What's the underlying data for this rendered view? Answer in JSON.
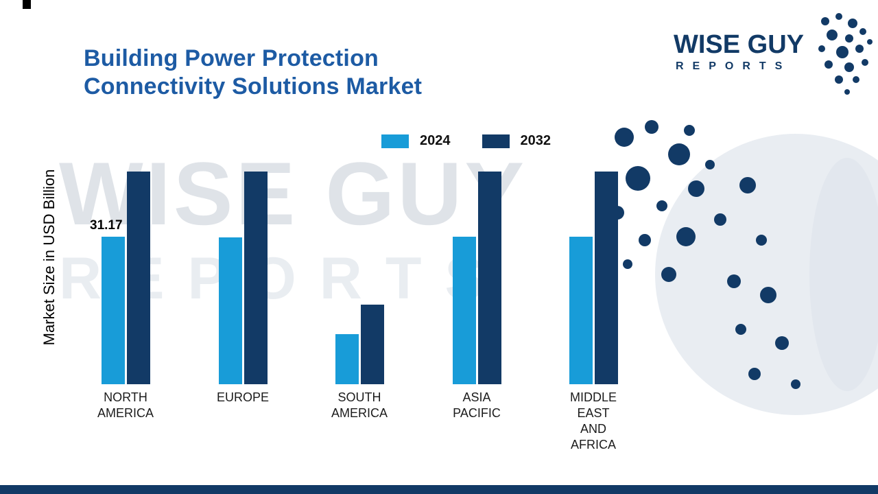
{
  "page": {
    "title_line1": "Building Power Protection",
    "title_line2": "Connectivity Solutions Market"
  },
  "logo": {
    "brand": "WISE GUY",
    "subbrand": "REPORTS"
  },
  "watermark": {
    "line1": "WISE GUY",
    "line2": "REPORTS"
  },
  "axis": {
    "ylabel": "Market Size in USD Billion"
  },
  "chart_data": {
    "type": "bar",
    "title": "Building Power Protection Connectivity Solutions Market",
    "ylabel": "Market Size in USD Billion",
    "xlabel": "",
    "categories": [
      "NORTH\nAMERICA",
      "EUROPE",
      "SOUTH\nAMERICA",
      "ASIA\nPACIFIC",
      "MIDDLE\nEAST\nAND\nAFRICA"
    ],
    "series": [
      {
        "name": "2024",
        "color": "#189cd8",
        "values": [
          31.17,
          31.0,
          10.6,
          31.2,
          31.2
        ]
      },
      {
        "name": "2032",
        "color": "#123a66",
        "values": [
          45.0,
          45.0,
          16.8,
          45.0,
          45.0
        ]
      }
    ],
    "bar_label": {
      "text": "31.17",
      "series": 0,
      "index": 0
    },
    "ylim": [
      0,
      48
    ],
    "grid": false,
    "legend_position": "top"
  },
  "colors": {
    "accent_blue": "#189cd8",
    "navy": "#123a66",
    "title_blue": "#1d5ba4"
  }
}
